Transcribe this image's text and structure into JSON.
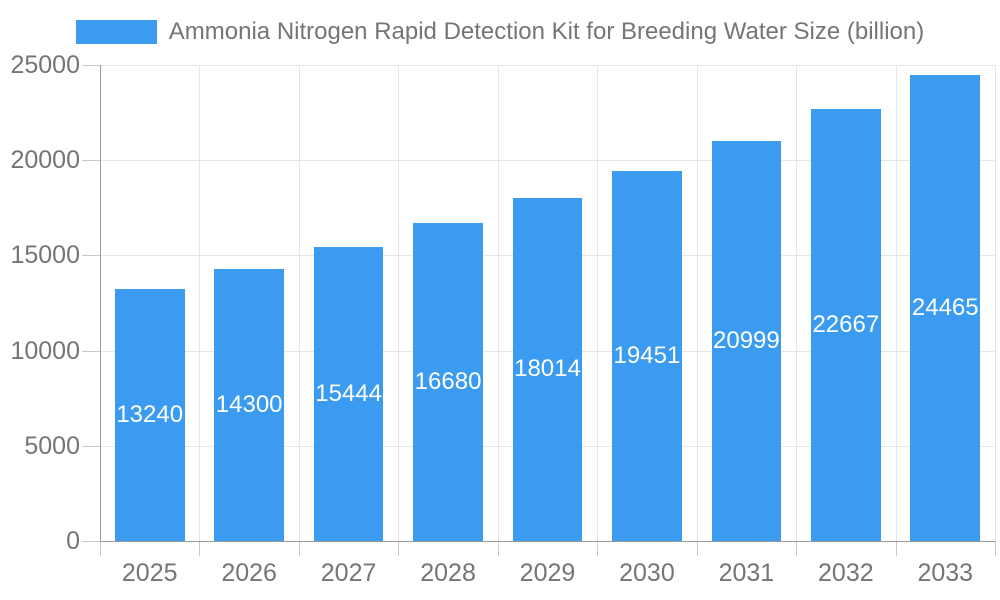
{
  "legend": {
    "label": "Ammonia Nitrogen Rapid Detection Kit for Breeding Water Size (billion)"
  },
  "colors": {
    "bar": "#3A9BF0",
    "axis": "#999999",
    "tick": "#c8c8c8",
    "grid": "#e6e6e6",
    "text": "#757575",
    "bar_label": "#ffffff",
    "background": "#ffffff"
  },
  "chart_data": {
    "type": "bar",
    "title": "Ammonia Nitrogen Rapid Detection Kit for Breeding Water Size (billion)",
    "categories": [
      "2025",
      "2026",
      "2027",
      "2028",
      "2029",
      "2030",
      "2031",
      "2032",
      "2033"
    ],
    "values": [
      13240,
      14300,
      15444,
      16680,
      18014,
      19451,
      20999,
      22667,
      24465
    ],
    "xlabel": "",
    "ylabel": "",
    "ylim": [
      0,
      25000
    ],
    "ytick_step": 5000,
    "ytick_labels": [
      "0",
      "5000",
      "10000",
      "15000",
      "20000",
      "25000"
    ],
    "grid": true,
    "legend_position": "top-center",
    "bar_label_position": "inside-center",
    "bar_width_ratio": 0.7
  }
}
